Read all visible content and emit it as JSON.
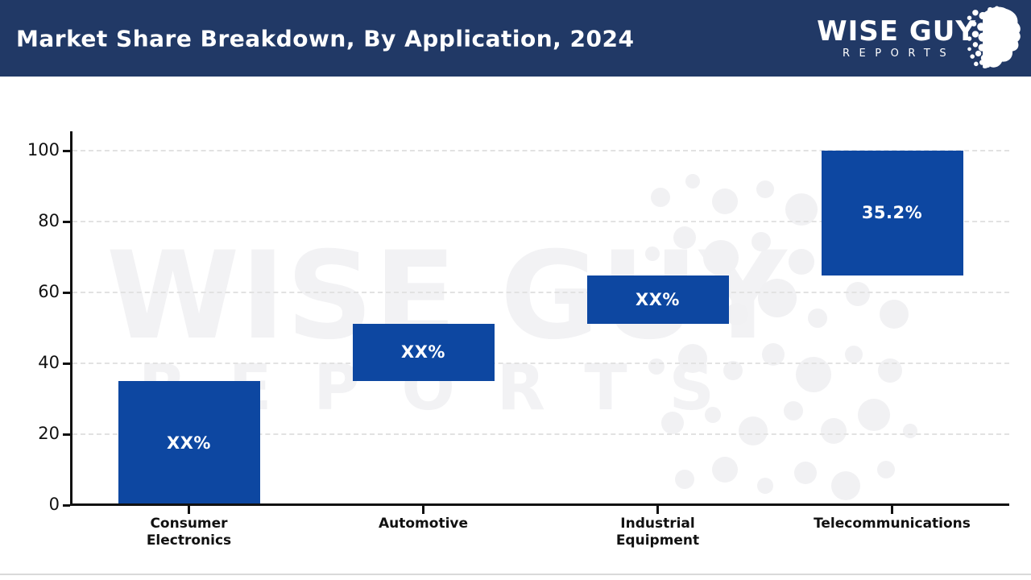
{
  "header": {
    "title": "Market Share Breakdown, By Application, 2024",
    "logo": {
      "line1": "WISE GUY",
      "line2": "REPORTS"
    }
  },
  "watermark": {
    "line1": "WISE GUY",
    "line2": "REPORTS"
  },
  "colors": {
    "header_bg": "#213966",
    "bar": "#0d47a1",
    "bar_label": "#ffffff",
    "gridline": "#e2e2e2",
    "axis": "#111111",
    "watermark": "#f2f2f4",
    "footer_line": "#d9d9d9"
  },
  "chart_data": {
    "type": "bar",
    "subtype": "waterfall-floating-bars",
    "title": "Market Share Breakdown, By Application, 2024",
    "categories": [
      "Consumer Electronics",
      "Automotive",
      "Industrial Equipment",
      "Telecommunications"
    ],
    "category_label_lines": [
      [
        "Consumer",
        "Electronics"
      ],
      [
        "Automotive"
      ],
      [
        "Industrial",
        "Equipment"
      ],
      [
        "Telecommunications"
      ]
    ],
    "segments": [
      {
        "category": "Consumer Electronics",
        "start": 0,
        "end": 35.0,
        "value_label": "XX%"
      },
      {
        "category": "Automotive",
        "start": 35.0,
        "end": 51.2,
        "value_label": "XX%"
      },
      {
        "category": "Industrial Equipment",
        "start": 51.2,
        "end": 64.8,
        "value_label": "XX%"
      },
      {
        "category": "Telecommunications",
        "start": 64.8,
        "end": 100.0,
        "value_label": "35.2%"
      }
    ],
    "xlabel": "",
    "ylabel": "",
    "y_ticks": [
      0,
      20,
      40,
      60,
      80,
      100
    ],
    "ylim": [
      0,
      105
    ],
    "grid": "horizontal dashed",
    "legend": "none"
  }
}
